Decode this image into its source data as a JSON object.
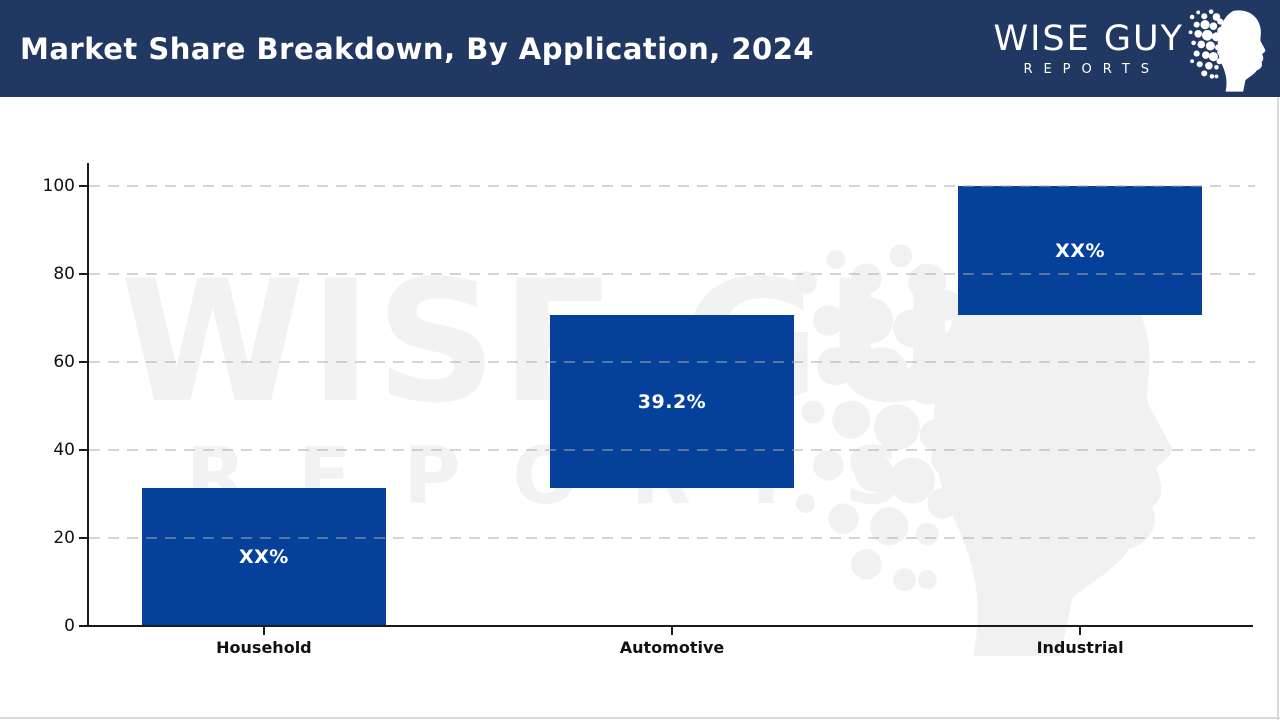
{
  "header": {
    "title": "Market Share Breakdown, By Application, 2024",
    "bg_color": "#213863",
    "logo": {
      "line1": "WISE GUY",
      "line2": "REPORTS"
    }
  },
  "watermark": {
    "line1": "WISE GUY",
    "line2": "REPORTS"
  },
  "chart_data": {
    "type": "bar",
    "subtype": "floating-segment-bars",
    "title": "Market Share Breakdown, By Application, 2024",
    "categories": [
      "Household",
      "Automotive",
      "Industrial"
    ],
    "bars": [
      {
        "category": "Household",
        "start": 0,
        "end": 31.4,
        "label": "XX%"
      },
      {
        "category": "Automotive",
        "start": 31.4,
        "end": 70.6,
        "label": "39.2%"
      },
      {
        "category": "Industrial",
        "start": 70.6,
        "end": 100,
        "label": "XX%"
      }
    ],
    "ylim": [
      0,
      100
    ],
    "yticks": [
      0,
      20,
      40,
      60,
      80,
      100
    ],
    "xlabel": "",
    "ylabel": "",
    "bar_color": "#05419b",
    "bar_label_color": "#ffffff",
    "grid": {
      "horizontal": true,
      "style": "dashed",
      "color": "#d9d9d9"
    },
    "legend": "none"
  }
}
